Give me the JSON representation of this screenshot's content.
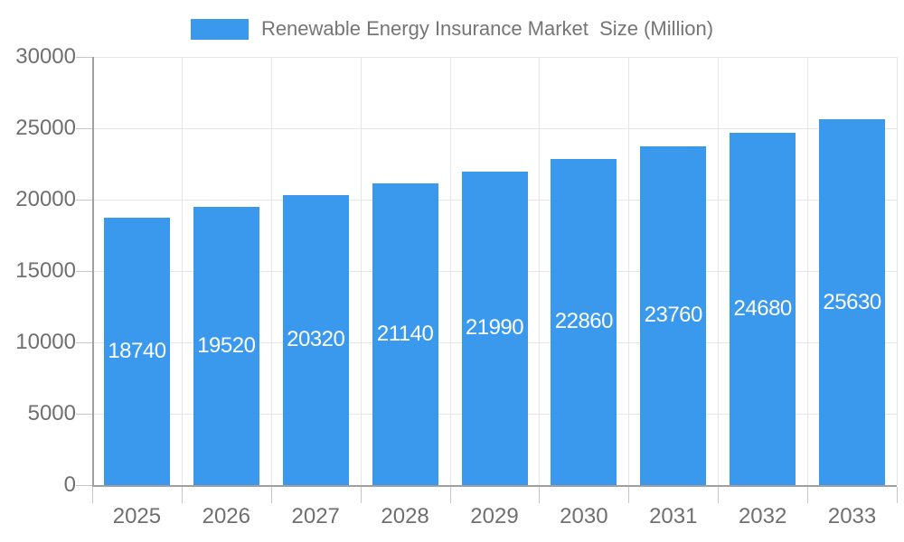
{
  "legend": {
    "label": "Renewable Energy Insurance Market  Size (Million)"
  },
  "colors": {
    "bar": "#3A99EC",
    "grid": "#E6E6E6",
    "axis": "#A0A0A0",
    "tick_mark": "#C6C6C6",
    "tick_text": "#6F6F6F",
    "legend_text": "#757575",
    "bar_label_text": "#FFFFFF",
    "background": "#FFFFFF"
  },
  "chart_data": {
    "type": "bar",
    "title": "Renewable Energy Insurance Market  Size (Million)",
    "categories": [
      "2025",
      "2026",
      "2027",
      "2028",
      "2029",
      "2030",
      "2031",
      "2032",
      "2033"
    ],
    "values": [
      18740,
      19520,
      20320,
      21140,
      21990,
      22860,
      23760,
      24680,
      25630
    ],
    "bar_labels": [
      "18740",
      "19520",
      "20320",
      "21140",
      "21990",
      "22860",
      "23760",
      "24680",
      "25630"
    ],
    "xlabel": "",
    "ylabel": "",
    "ylim": [
      0,
      30000
    ],
    "yticks": [
      0,
      5000,
      10000,
      15000,
      20000,
      25000,
      30000
    ],
    "ytick_labels": [
      "0",
      "5000",
      "10000",
      "15000",
      "20000",
      "25000",
      "30000"
    ],
    "grid": true,
    "legend_position": "top"
  }
}
